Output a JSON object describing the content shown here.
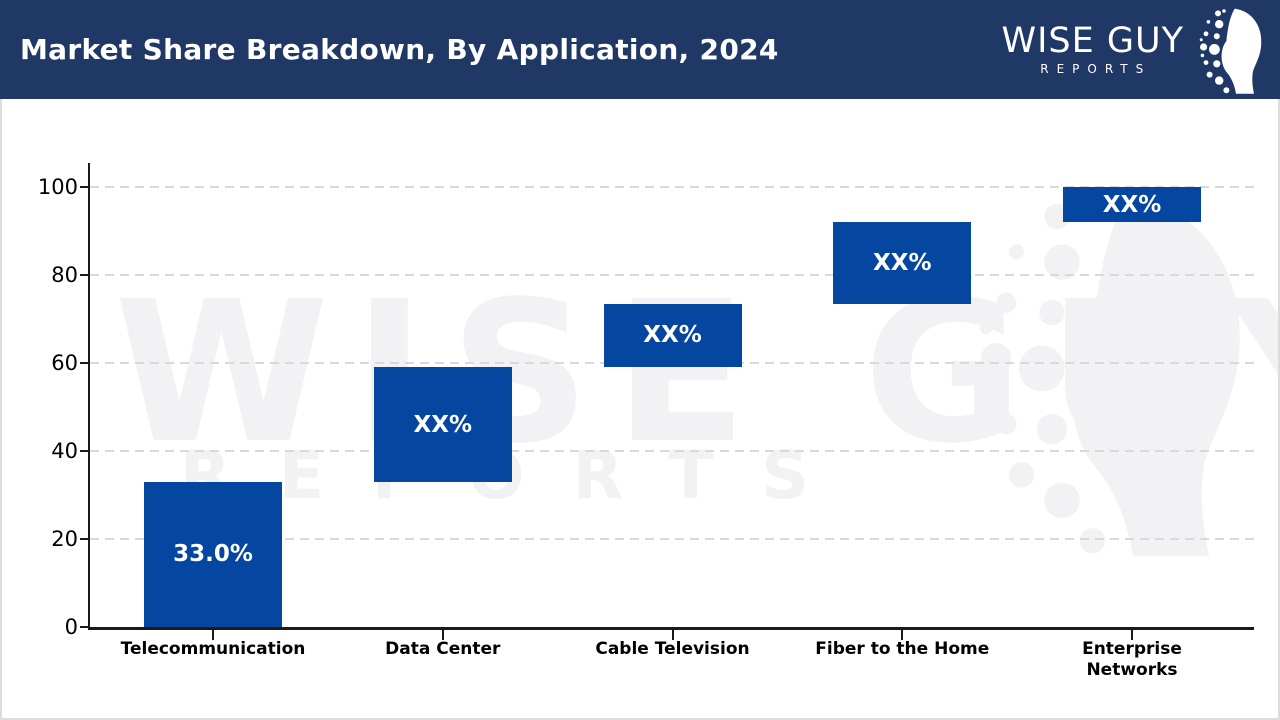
{
  "header": {
    "title": "Market Share Breakdown, By Application, 2024",
    "logo": {
      "brand": "WISE GUY",
      "sub": "REPORTS"
    }
  },
  "watermark": {
    "brand": "WISE GUY",
    "sub": "REPORTS"
  },
  "colors": {
    "header_bg": "#203866",
    "bar": "#0546a0",
    "grid": "#d9d9d9",
    "axis": "#1a1a1a",
    "watermark": "#f2f2f4",
    "bar_label": "#ffffff"
  },
  "chart_data": {
    "type": "bar",
    "subtype": "waterfall",
    "title": "Market Share Breakdown, By Application, 2024",
    "categories": [
      "Telecommunication",
      "Data Center",
      "Cable Television",
      "Fiber to the Home",
      "Enterprise\nNetworks"
    ],
    "segments": [
      {
        "category": "Telecommunication",
        "start": 0,
        "end": 33,
        "label": "33.0%"
      },
      {
        "category": "Data Center",
        "start": 33,
        "end": 59,
        "label": "XX%"
      },
      {
        "category": "Cable Television",
        "start": 59,
        "end": 73.5,
        "label": "XX%"
      },
      {
        "category": "Fiber to the Home",
        "start": 73.5,
        "end": 92,
        "label": "XX%"
      },
      {
        "category": "Enterprise Networks",
        "start": 92,
        "end": 100,
        "label": "XX%"
      }
    ],
    "yticks": [
      0,
      20,
      40,
      60,
      80,
      100
    ],
    "ylim": [
      0,
      105
    ],
    "xlabel": "",
    "ylabel": "",
    "legend": null,
    "grid": "horizontal-dashed"
  }
}
